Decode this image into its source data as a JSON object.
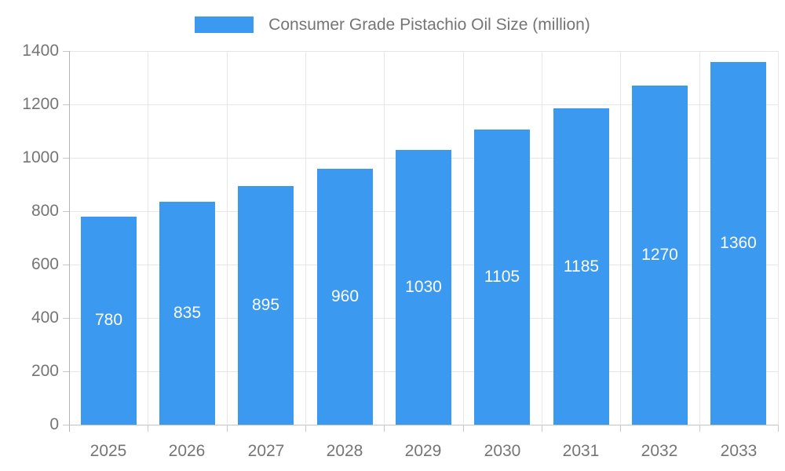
{
  "legend": {
    "label": "Consumer Grade Pistachio Oil Size (million)"
  },
  "chart_data": {
    "type": "bar",
    "title": "Consumer Grade Pistachio Oil Size (million)",
    "categories": [
      "2025",
      "2026",
      "2027",
      "2028",
      "2029",
      "2030",
      "2031",
      "2032",
      "2033"
    ],
    "values": [
      780,
      835,
      895,
      960,
      1030,
      1105,
      1185,
      1270,
      1360
    ],
    "series_name": "Consumer Grade Pistachio Oil Size (million)",
    "xlabel": "",
    "ylabel": "",
    "ylim": [
      0,
      1400
    ],
    "yticks": [
      0,
      200,
      400,
      600,
      800,
      1000,
      1200,
      1400
    ],
    "grid": true,
    "legend_position": "top",
    "bar_value_labels": true,
    "bar_value_label_position": "center"
  },
  "colors": {
    "bar": "#3b99ef",
    "gridline": "#e7e7e7",
    "axis_line": "#b3b3b3",
    "tick": "#c9c9c9",
    "zero_line": "#c4c4c4",
    "label_text": "#757575",
    "bar_label_text": "#ffffff",
    "background": "#ffffff"
  }
}
